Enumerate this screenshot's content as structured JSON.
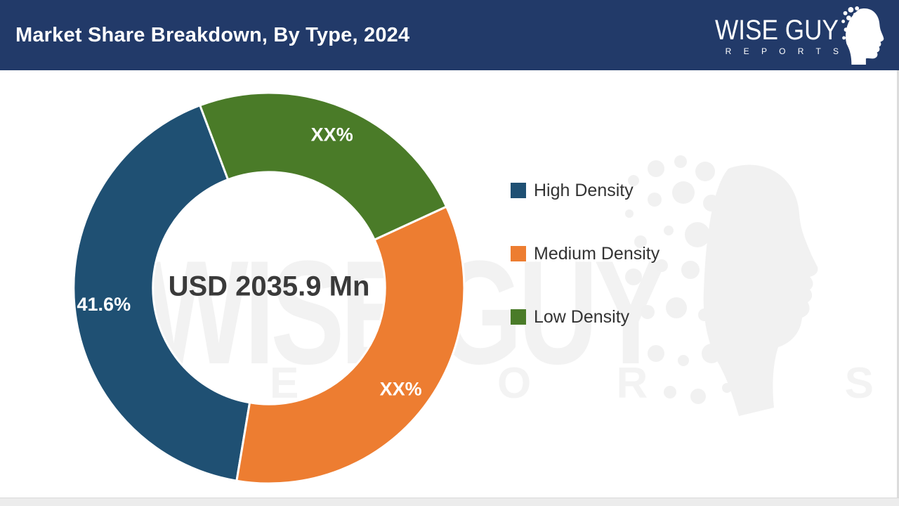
{
  "header": {
    "title": "Market Share Breakdown, By Type, 2024",
    "bg_color": "#223A69",
    "logo": {
      "line1": "WISE GUY",
      "line2": "R E P O R T S"
    }
  },
  "watermark": {
    "line1": "WISE GUY",
    "line2": "R E P O R T S"
  },
  "chart_data": {
    "type": "donut",
    "title": "Market Share Breakdown, By Type, 2024",
    "center_label": "USD 2035.9 Mn",
    "start_angle_deg": 339.3,
    "direction": "counterclockwise",
    "inner_radius_ratio": 0.594,
    "legend_position": "right",
    "segments": [
      {
        "name": "High Density",
        "share_pct": 41.6,
        "label": "41.6%",
        "color": "#1F5073"
      },
      {
        "name": "Medium Density",
        "share_pct": 34.5,
        "label": "XX%",
        "color": "#ED7D31"
      },
      {
        "name": "Low Density",
        "share_pct": 23.9,
        "label": "XX%",
        "color": "#4A7B28"
      }
    ]
  }
}
